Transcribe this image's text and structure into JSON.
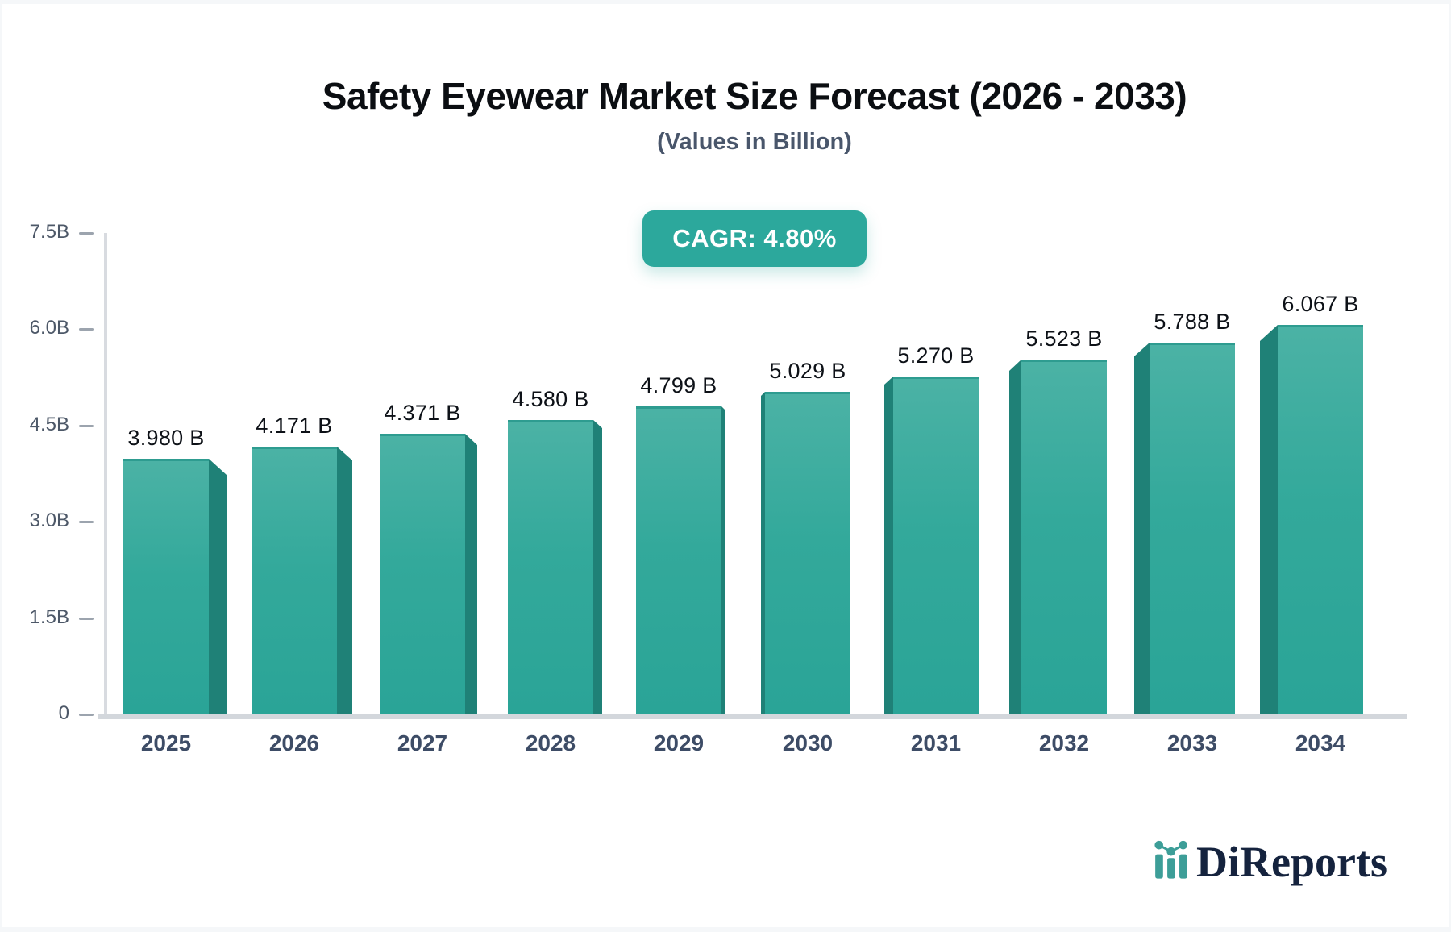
{
  "header": {
    "title": "Safety Eyewear Market Size Forecast (2026 - 2033)",
    "subtitle": "(Values in Billion)",
    "cagr_badge": "CAGR: 4.80%"
  },
  "chart_data": {
    "type": "bar",
    "title": "Safety Eyewear Market Size Forecast (2026 - 2033)",
    "subtitle": "(Values in Billion)",
    "xlabel": "",
    "ylabel": "",
    "unit": "Billion",
    "cagr": "4.80%",
    "categories": [
      "2025",
      "2026",
      "2027",
      "2028",
      "2029",
      "2030",
      "2031",
      "2032",
      "2033",
      "2034"
    ],
    "values": [
      3.98,
      4.171,
      4.371,
      4.58,
      4.799,
      5.029,
      5.27,
      5.523,
      5.788,
      6.067
    ],
    "value_labels": [
      "3.980 B",
      "4.171 B",
      "4.371 B",
      "4.580 B",
      "4.799 B",
      "5.029 B",
      "5.270 B",
      "5.523 B",
      "5.788 B",
      "6.067 B"
    ],
    "y_ticks": [
      "0",
      "1.5B",
      "3.0B",
      "4.5B",
      "6.0B",
      "7.5B"
    ],
    "y_tick_values": [
      0,
      1.5,
      3.0,
      4.5,
      6.0,
      7.5
    ],
    "ylim": [
      0,
      7.5
    ],
    "grid": false,
    "legend": false,
    "colors": {
      "bar_top": "#4bb2a5",
      "bar_bottom": "#2aa497",
      "bar_side": "#1f8177",
      "bar_top_edge": "#2e9c90",
      "axis_line": "#d8dbe0",
      "baseline": "#d3d7dc",
      "tick_mark": "#9ca4ae",
      "y_label_color": "#4d5868",
      "x_label_color": "#3d4c66",
      "badge_bg": "#2ca89c",
      "badge_text": "#ffffff"
    }
  },
  "branding": {
    "logo_text": "DiReports",
    "logo_icon": "mini-bar-line-chart-icon",
    "logo_text_color": "#15233e",
    "logo_icon_color": "#3d9e98"
  }
}
